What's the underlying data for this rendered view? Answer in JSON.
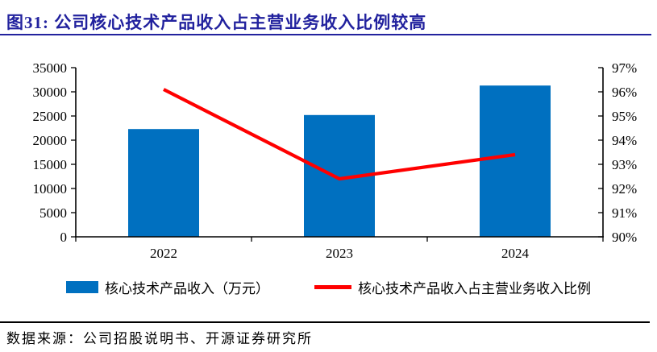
{
  "title": {
    "text": "图31:  公司核心技术产品收入占主营业务收入比例较高"
  },
  "source": {
    "text": "数据来源：公司招股说明书、开源证券研究所"
  },
  "colors": {
    "title_navy": "#22229E",
    "bar_blue": "#0070C0",
    "line_red": "#FF0000",
    "axis_black": "#000000"
  },
  "chart_data": {
    "type": "bar",
    "subtype": "bar-line-combo-dual-axis",
    "categories": [
      "2022",
      "2023",
      "2024"
    ],
    "series": [
      {
        "name": "核心技术产品收入（万元）",
        "type": "bar",
        "axis": "left",
        "values": [
          22300,
          25200,
          31300
        ],
        "color": "#0070C0"
      },
      {
        "name": "核心技术产品收入占主营业务收入比例",
        "type": "line",
        "axis": "right",
        "values": [
          96.1,
          92.4,
          93.4
        ],
        "color": "#FF0000"
      }
    ],
    "left_axis": {
      "min": 0,
      "max": 35000,
      "step": 5000,
      "tick_labels": [
        "35000",
        "30000",
        "25000",
        "20000",
        "15000",
        "10000",
        "5000",
        "0"
      ]
    },
    "right_axis": {
      "min": 90,
      "max": 97,
      "step": 1,
      "tick_labels": [
        "97%",
        "96%",
        "95%",
        "94%",
        "93%",
        "92%",
        "91%",
        "90%"
      ]
    },
    "grid": false,
    "legend_position": "bottom"
  }
}
